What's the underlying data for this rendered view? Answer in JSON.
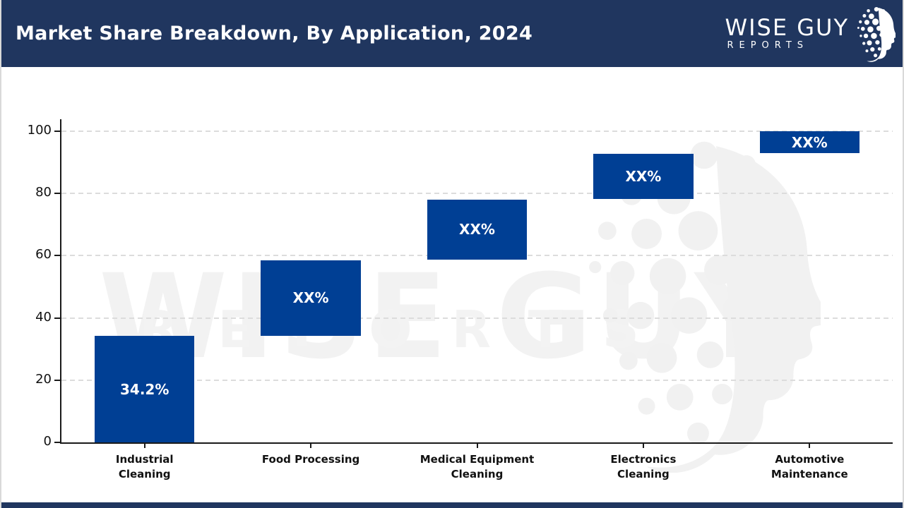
{
  "header": {
    "title": "Market Share Breakdown, By Application, 2024",
    "background_color": "#20365f",
    "logo": {
      "name": "WISE GUY",
      "tagline": "REPORTS"
    }
  },
  "watermark": {
    "line1": "WISE GUY",
    "line2": "REPORTS"
  },
  "chart_data": {
    "type": "bar",
    "subtype": "waterfall",
    "title": "Market Share Breakdown, By Application, 2024",
    "xlabel": "",
    "ylabel": "",
    "ylim": [
      0,
      100
    ],
    "yticks": [
      0,
      20,
      40,
      60,
      80,
      100
    ],
    "grid": "horizontal-dashed",
    "legend": "none",
    "bar_color": "#003f94",
    "value_label_color": "#ffffff",
    "categories": [
      "Industrial Cleaning",
      "Food Processing",
      "Medical Equipment Cleaning",
      "Electronics Cleaning",
      "Automotive Maintenance"
    ],
    "segments": [
      {
        "label": "Industrial Cleaning",
        "axis_lines": [
          "Industrial",
          "Cleaning"
        ],
        "start": 0,
        "end": 34.2,
        "value": 34.2,
        "value_label": "34.2%"
      },
      {
        "label": "Food Processing",
        "axis_lines": [
          "Food Processing"
        ],
        "start": 34.2,
        "end": 58.6,
        "value": 24.4,
        "value_label": "XX%"
      },
      {
        "label": "Medical Equipment Cleaning",
        "axis_lines": [
          "Medical Equipment",
          "Cleaning"
        ],
        "start": 58.8,
        "end": 78.0,
        "value": 19.2,
        "value_label": "XX%"
      },
      {
        "label": "Electronics Cleaning",
        "axis_lines": [
          "Electronics",
          "Cleaning"
        ],
        "start": 78.2,
        "end": 92.8,
        "value": 14.6,
        "value_label": "XX%"
      },
      {
        "label": "Automotive Maintenance",
        "axis_lines": [
          "Automotive",
          "Maintenance"
        ],
        "start": 92.9,
        "end": 100.0,
        "value": 7.1,
        "value_label": "XX%"
      }
    ],
    "axis_color": "#1a1a1a",
    "gridline_color": "#dcdcdc",
    "watermark_color": "#f2f2f2"
  }
}
